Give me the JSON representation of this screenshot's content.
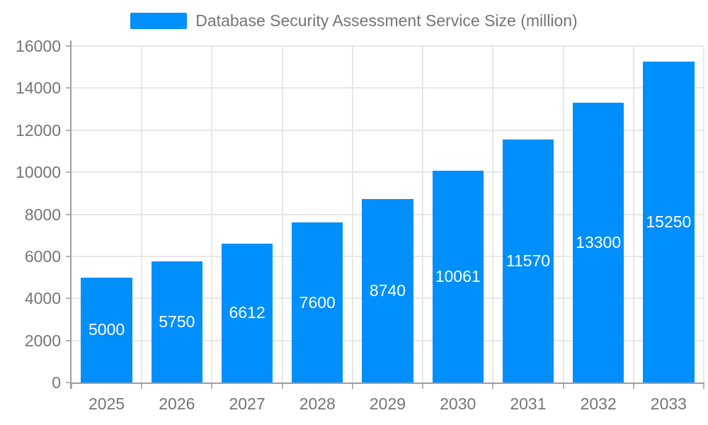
{
  "chart_data": {
    "type": "bar",
    "title": "Database Security Assessment Service Size (million)",
    "categories": [
      "2025",
      "2026",
      "2027",
      "2028",
      "2029",
      "2030",
      "2031",
      "2032",
      "2033"
    ],
    "values": [
      5000,
      5750,
      6612,
      7600,
      8740,
      10061,
      11570,
      13300,
      15250
    ],
    "xlabel": "",
    "ylabel": "",
    "ylim": [
      0,
      16000
    ],
    "ytick_step": 2000,
    "ytick_labels": [
      "0",
      "2000",
      "4000",
      "6000",
      "8000",
      "10000",
      "12000",
      "14000",
      "16000"
    ],
    "grid": true,
    "legend_position": "top",
    "bar_width_ratio": 0.73,
    "colors": {
      "bar": "#008FFB",
      "bar_label": "#ffffff",
      "axis_text": "#757575",
      "grid": "#e7e7e7",
      "axis_line": "#9e9e9e",
      "tick": "#b3b3b3",
      "background": "#ffffff"
    }
  }
}
